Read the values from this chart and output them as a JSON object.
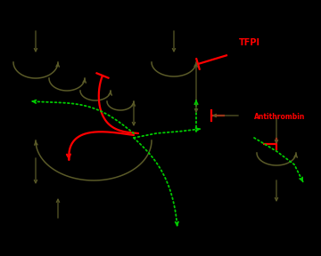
{
  "bg_color": "#000000",
  "dark_color": "#5a5a28",
  "red_color": "#ff0000",
  "green_color": "#00cc00",
  "tfpi_label": "TFPI",
  "antithrombin_label": "Antithrombin",
  "figsize": [
    3.6,
    2.88
  ],
  "dpi": 100
}
